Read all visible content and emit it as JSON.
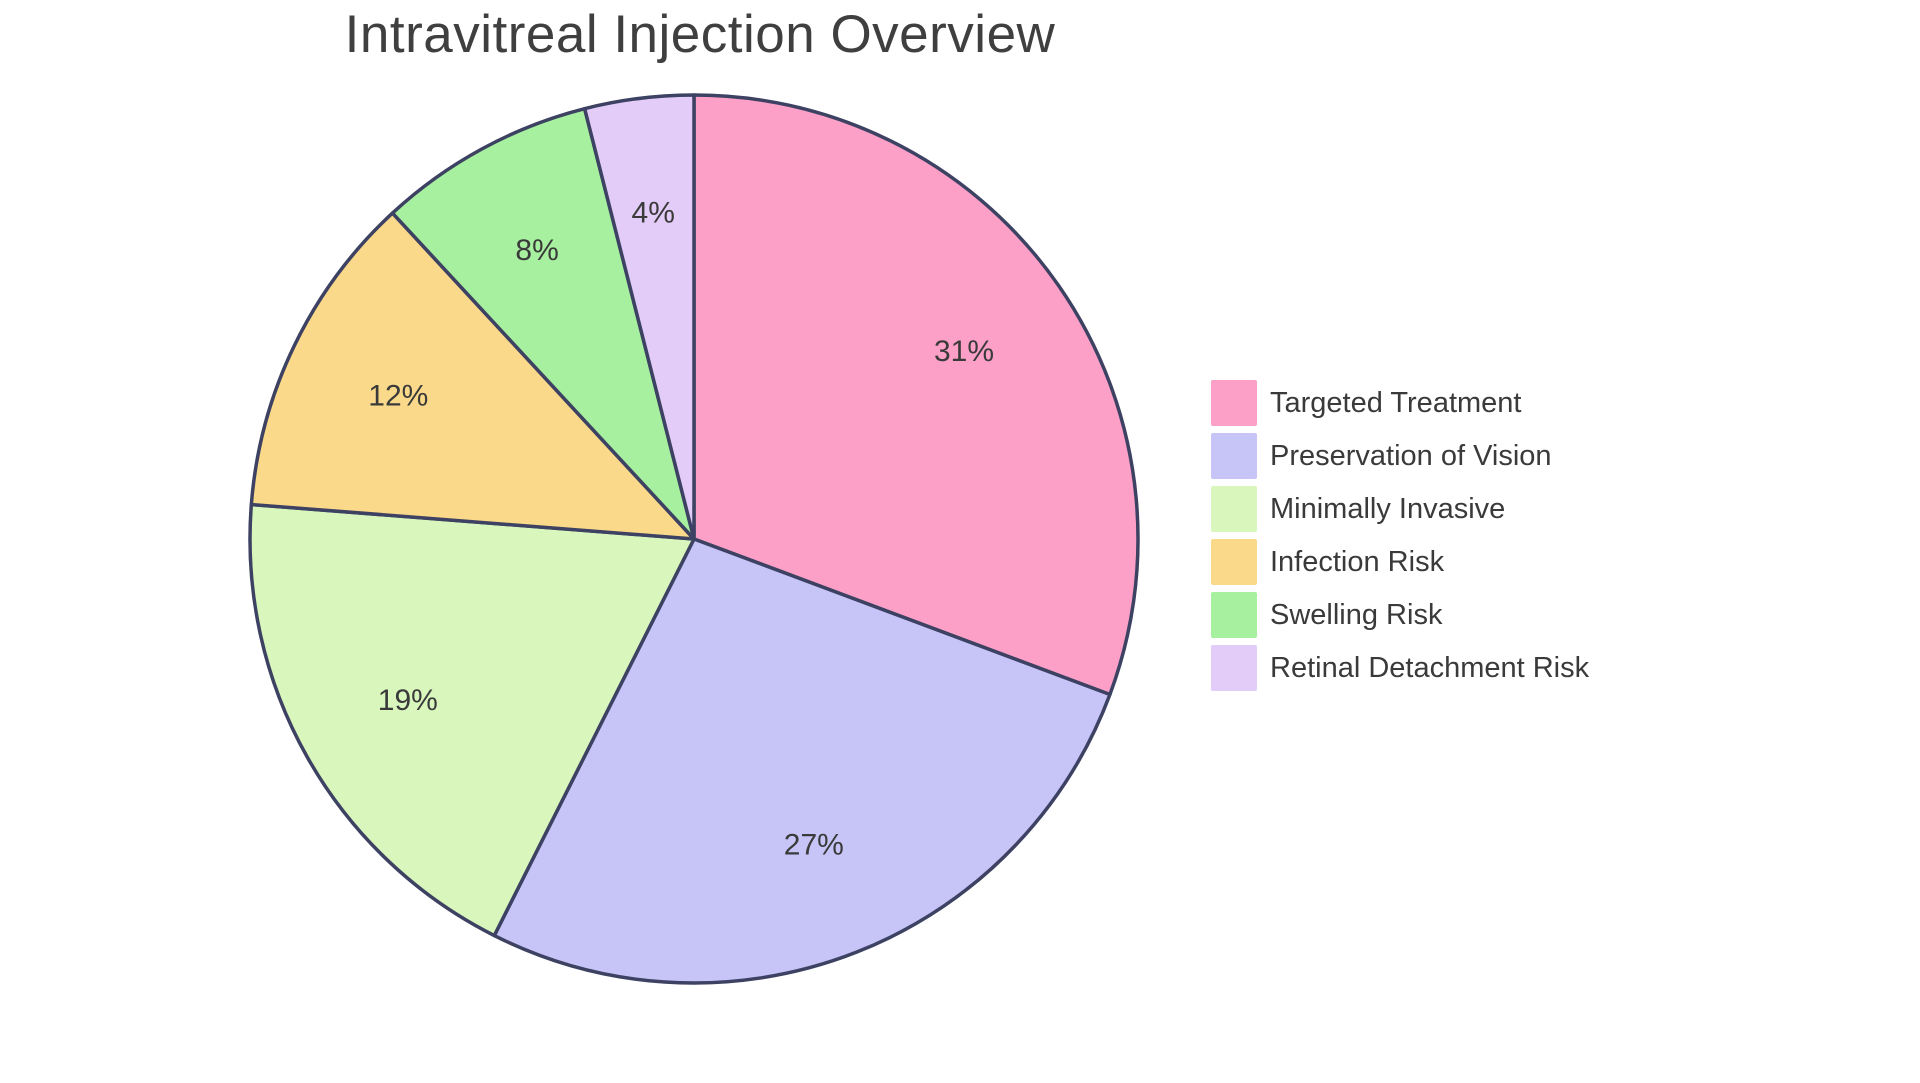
{
  "chart_data": {
    "type": "pie",
    "title": "Intravitreal Injection Overview",
    "labels": [
      "Targeted Treatment",
      "Preservation of Vision",
      "Minimally Invasive",
      "Infection Risk",
      "Swelling Risk",
      "Retinal Detachment Risk"
    ],
    "values": [
      31,
      27,
      19,
      12,
      8,
      4
    ],
    "slice_labels": [
      "31%",
      "27%",
      "19%",
      "12%",
      "8%",
      "4%"
    ],
    "colors": [
      "#FCA0C8",
      "#C7C5F8",
      "#D9F6BD",
      "#FBD98A",
      "#A7F09F",
      "#E4CCF9"
    ],
    "start_angle": "top",
    "direction": "clockwise",
    "stroke_color": "#3D4263",
    "stroke_width": 3.5,
    "pct_label_distance": 0.74,
    "pct_label_color": "#3a3a3a",
    "legend_position": "right",
    "grid": false
  },
  "legend": {
    "items": [
      {
        "label": "Targeted Treatment",
        "color": "#FCA0C8"
      },
      {
        "label": "Preservation of Vision",
        "color": "#C7C5F8"
      },
      {
        "label": "Minimally Invasive",
        "color": "#D9F6BD"
      },
      {
        "label": "Infection Risk",
        "color": "#FBD98A"
      },
      {
        "label": "Swelling Risk",
        "color": "#A7F09F"
      },
      {
        "label": "Retinal Detachment Risk",
        "color": "#E4CCF9"
      }
    ]
  }
}
